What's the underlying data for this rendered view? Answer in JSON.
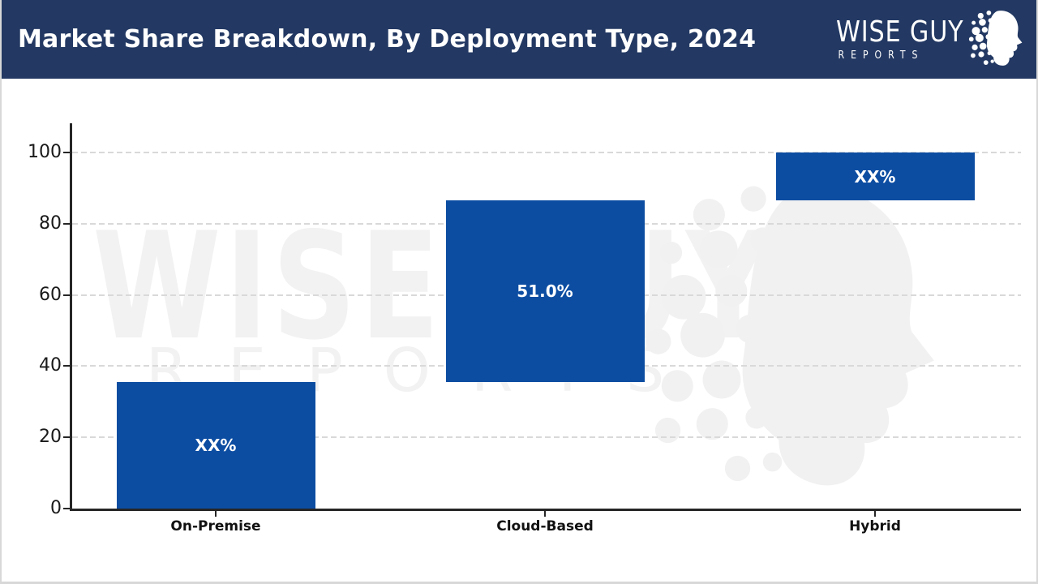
{
  "header": {
    "title": "Market Share Breakdown, By Deployment Type, 2024",
    "bg_color": "#233963",
    "logo": {
      "line1": "WISE GUY",
      "line2": "REPORTS"
    }
  },
  "watermark": {
    "line1": "WISE GUY",
    "line2": "REPORTS"
  },
  "chart_data": {
    "type": "bar",
    "subtype": "stacked-waterfall-segments",
    "title": "Market Share Breakdown, By Deployment Type, 2024",
    "categories": [
      "On-Premise",
      "Cloud-Based",
      "Hybrid"
    ],
    "bars": [
      {
        "category": "On-Premise",
        "start": 0,
        "end": 35.5,
        "value": 35.5,
        "value_label": "XX%"
      },
      {
        "category": "Cloud-Based",
        "start": 35.5,
        "end": 86.5,
        "value": 51.0,
        "value_label": "51.0%"
      },
      {
        "category": "Hybrid",
        "start": 86.5,
        "end": 100,
        "value": 13.5,
        "value_label": "XX%"
      }
    ],
    "xlabel": "",
    "ylabel": "",
    "ylim": [
      0,
      100
    ],
    "yticks": [
      0,
      20,
      40,
      60,
      80,
      100
    ],
    "grid": "horizontal-dashed",
    "grid_color": "#d9d9d9",
    "bar_color": "#0c4da2",
    "label_color": "#ffffff",
    "legend": "none"
  }
}
